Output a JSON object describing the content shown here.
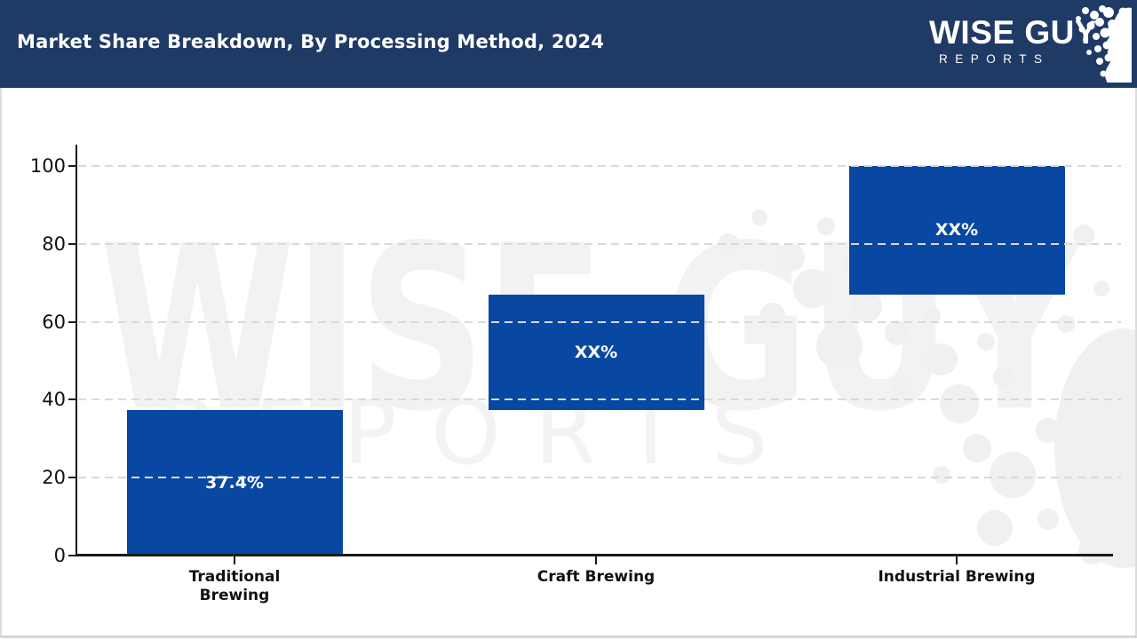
{
  "header": {
    "title": "Market Share Breakdown, By Processing Method, 2024",
    "logo": {
      "line1": "WISE GUY",
      "line2": "REPORTS"
    }
  },
  "watermark": {
    "line1": "WISE GUY",
    "line2": "REPORTS"
  },
  "colors": {
    "header_bg": "#203A66",
    "bar": "#0847A2",
    "bar_label": "#FFFFFF",
    "grid": "#D9D9D9",
    "axis": "#1A1A1A",
    "tick_text": "#111111",
    "watermark": "#F2F2F2",
    "frame": "#DCDCDC"
  },
  "chart_data": {
    "type": "bar",
    "subtype": "waterfall",
    "title": "Market Share Breakdown, By Processing Method, 2024",
    "categories": [
      "Traditional Brewing",
      "Craft Brewing",
      "Industrial Brewing"
    ],
    "category_lines": [
      [
        "Traditional",
        "Brewing"
      ],
      [
        "Craft Brewing"
      ],
      [
        "Industrial Brewing"
      ]
    ],
    "segments": [
      {
        "category": "Traditional Brewing",
        "start": 0,
        "end": 37.4,
        "label": "37.4%"
      },
      {
        "category": "Craft Brewing",
        "start": 37.4,
        "end": 67,
        "label": "XX%"
      },
      {
        "category": "Industrial Brewing",
        "start": 67,
        "end": 100,
        "label": "XX%"
      }
    ],
    "yticks": [
      0,
      20,
      40,
      60,
      80,
      100
    ],
    "ylim": [
      0,
      106
    ],
    "xlabel": "",
    "ylabel": "",
    "grid": "dashed horizontal, drawn above bars",
    "legend": "none"
  }
}
